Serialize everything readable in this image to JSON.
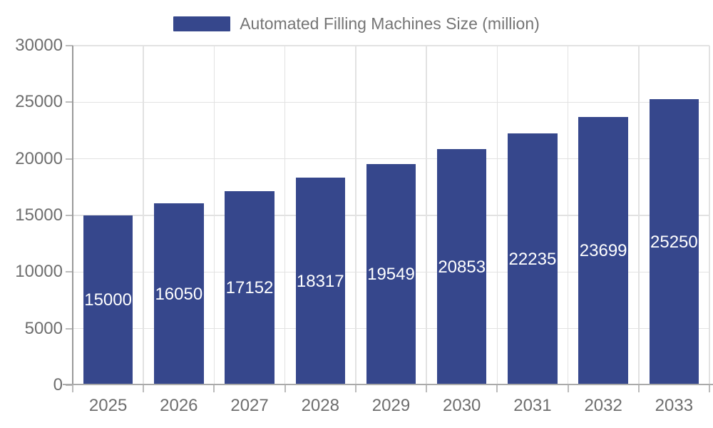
{
  "legend": {
    "label": "Automated Filling Machines Size (million)"
  },
  "colors": {
    "bar": "#36478C",
    "grid": "#e2e2e2",
    "y_axis_line": "#999999",
    "x_axis_line": "#aaaaaa",
    "tick": "#bbbbbb",
    "tick_label": "#6e6e6e",
    "legend_text": "#757575",
    "value_label": "#ffffff",
    "background": "#ffffff"
  },
  "chart_data": {
    "type": "bar",
    "title": "",
    "xlabel": "",
    "ylabel": "",
    "categories": [
      "2025",
      "2026",
      "2027",
      "2028",
      "2029",
      "2030",
      "2031",
      "2032",
      "2033"
    ],
    "series": [
      {
        "name": "Automated Filling Machines Size (million)",
        "values": [
          15000,
          16050,
          17152,
          18317,
          19549,
          20853,
          22235,
          23699,
          25250
        ]
      }
    ],
    "bar_value_labels": [
      "15000",
      "16050",
      "17152",
      "18317",
      "19549",
      "20853",
      "22235",
      "23699",
      "25250"
    ],
    "ylim": [
      0,
      30000
    ],
    "yticks": [
      0,
      5000,
      10000,
      15000,
      20000,
      25000,
      30000
    ],
    "ytick_labels": [
      "0",
      "5000",
      "10000",
      "15000",
      "20000",
      "25000",
      "30000"
    ],
    "grid": true,
    "legend_position": "top"
  }
}
